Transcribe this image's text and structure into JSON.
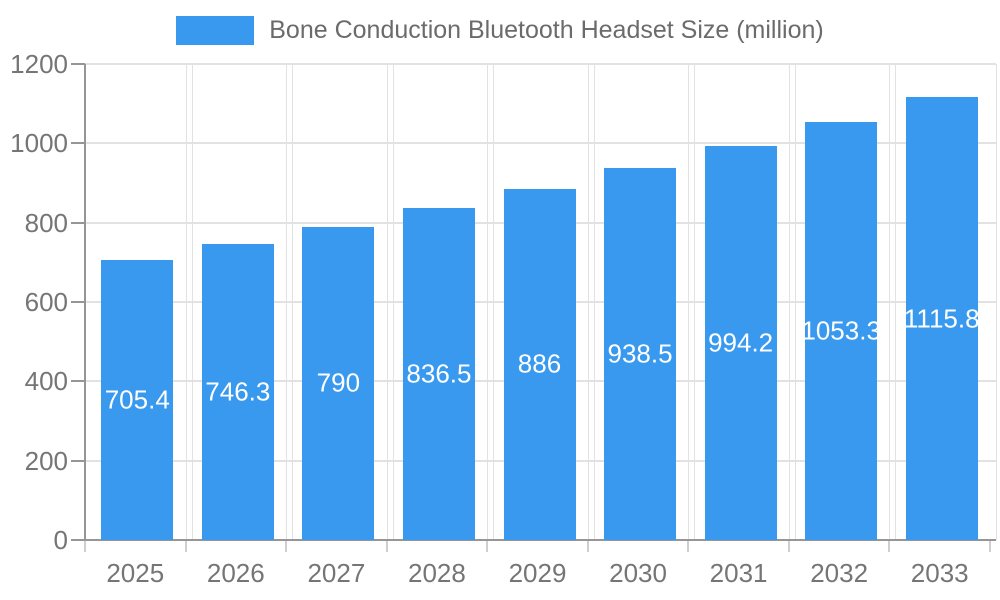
{
  "chart_data": {
    "type": "bar",
    "title": "Bone Conduction Bluetooth Headset Size (million)",
    "categories": [
      "2025",
      "2026",
      "2027",
      "2028",
      "2029",
      "2030",
      "2031",
      "2032",
      "2033"
    ],
    "values": [
      705.4,
      746.3,
      790,
      836.5,
      886,
      938.5,
      994.2,
      1053.3,
      1115.8
    ],
    "value_labels": [
      "705.4",
      "746.3",
      "790",
      "836.5",
      "886",
      "938.5",
      "994.2",
      "1053.3",
      "1115.8"
    ],
    "xlabel": "",
    "ylabel": "",
    "ylim": [
      0,
      1200
    ],
    "yticks": [
      0,
      200,
      400,
      600,
      800,
      1000,
      1200
    ],
    "grid": true,
    "legend_position": "top-center",
    "colors": {
      "bar": "#3999EE",
      "bar_label": "#ffffff",
      "tick_label": "#757575",
      "legend_text": "#6b6b6b",
      "axis_line": "#969696",
      "gridline": "#e2e2e2",
      "x_tick_mark": "#cfcfcf",
      "background": "#ffffff"
    }
  },
  "legend": {
    "swatch_icon": "legend-swatch"
  }
}
